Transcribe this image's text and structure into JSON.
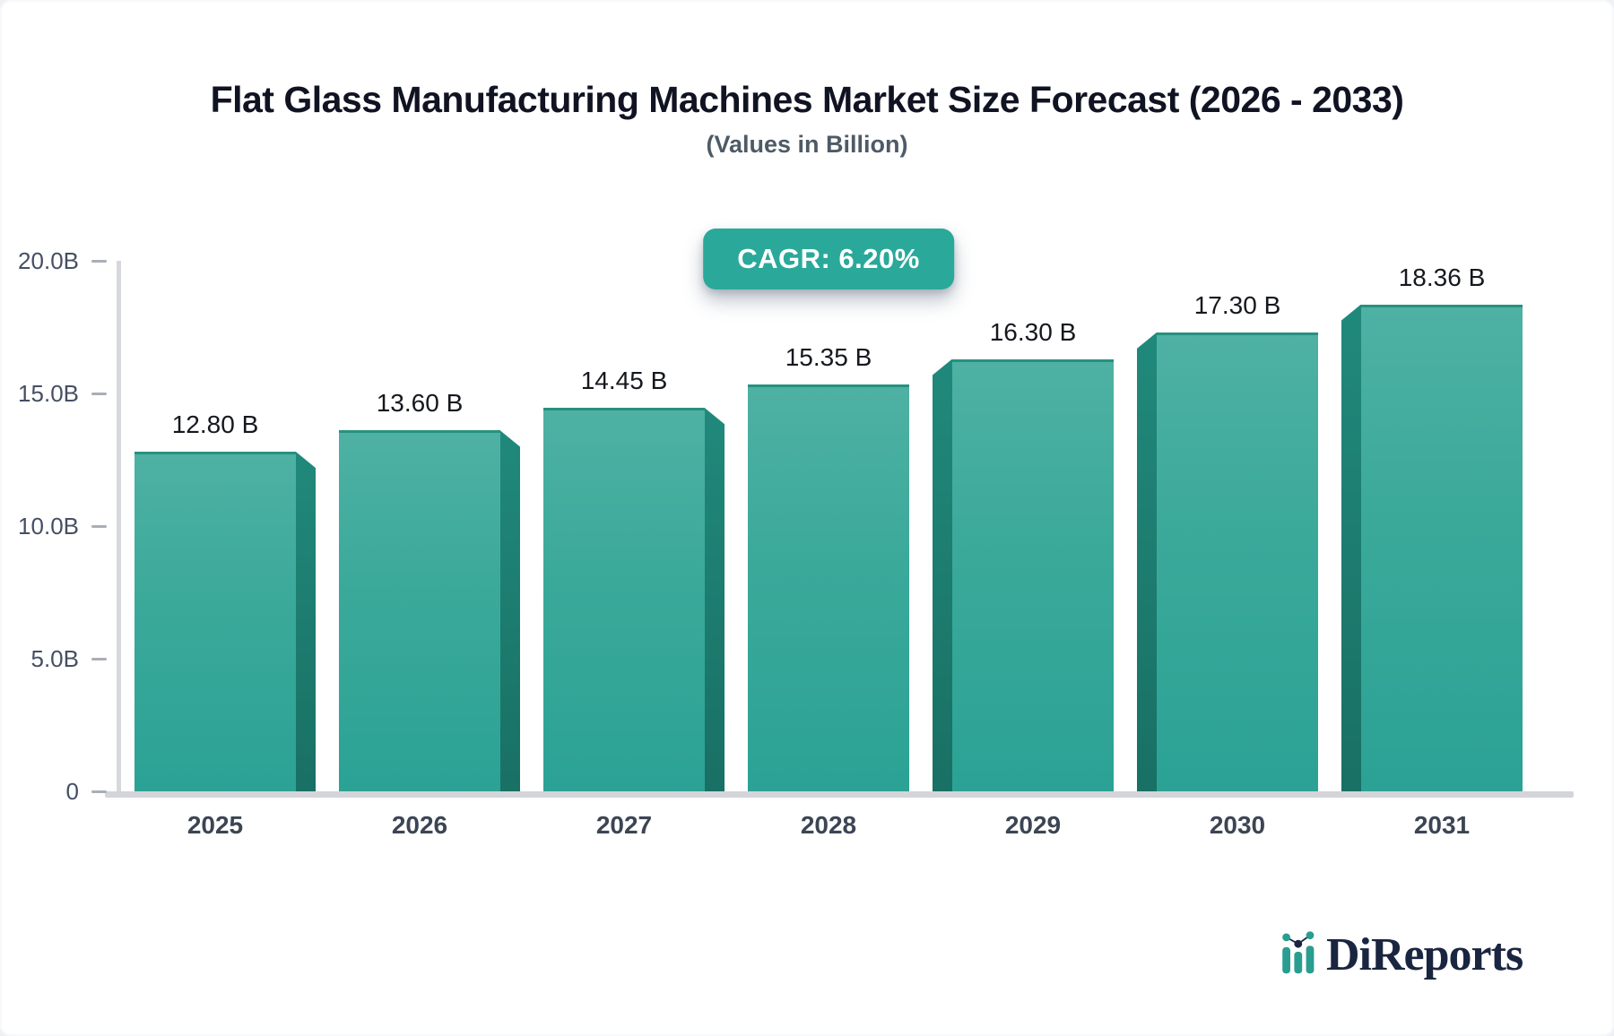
{
  "header": {
    "title": "Flat Glass Manufacturing Machines Market Size Forecast (2026 - 2033)",
    "subtitle": "(Values in Billion)"
  },
  "badge": {
    "label": "CAGR: 6.20%"
  },
  "chart_data": {
    "type": "bar",
    "title": "Flat Glass Manufacturing Machines Market Size Forecast (2026 - 2033)",
    "subtitle": "(Values in Billion)",
    "cagr_annotation": "CAGR: 6.20%",
    "categories": [
      "2025",
      "2026",
      "2027",
      "2028",
      "2029",
      "2030",
      "2031"
    ],
    "values": [
      12.8,
      13.6,
      14.45,
      15.35,
      16.3,
      17.3,
      18.36
    ],
    "bar_labels": [
      "12.80 B",
      "13.60 B",
      "14.45 B",
      "15.35 B",
      "16.30 B",
      "17.30 B",
      "18.36 B"
    ],
    "ylim": [
      0,
      20
    ],
    "y_axis": {
      "ticks": [
        {
          "label": "20.0B",
          "value": 20
        },
        {
          "label": "15.0B",
          "value": 15
        },
        {
          "label": "10.0B",
          "value": 10
        },
        {
          "label": "5.0B",
          "value": 5
        },
        {
          "label": "0",
          "value": 0
        }
      ]
    },
    "grid": false,
    "legend": false,
    "colors": {
      "bar_gradient_top": "#4eb1a3",
      "bar_gradient_bottom": "#2ba295",
      "bar_side_dark": "#1e7e71",
      "badge_background": "#2aa99b",
      "axis_gray": "#d5d7dc",
      "label_dark": "#15181e"
    }
  },
  "branding": {
    "logo_text": "DiReports",
    "logo_icon": "mini-bar-line-chart-icon"
  }
}
